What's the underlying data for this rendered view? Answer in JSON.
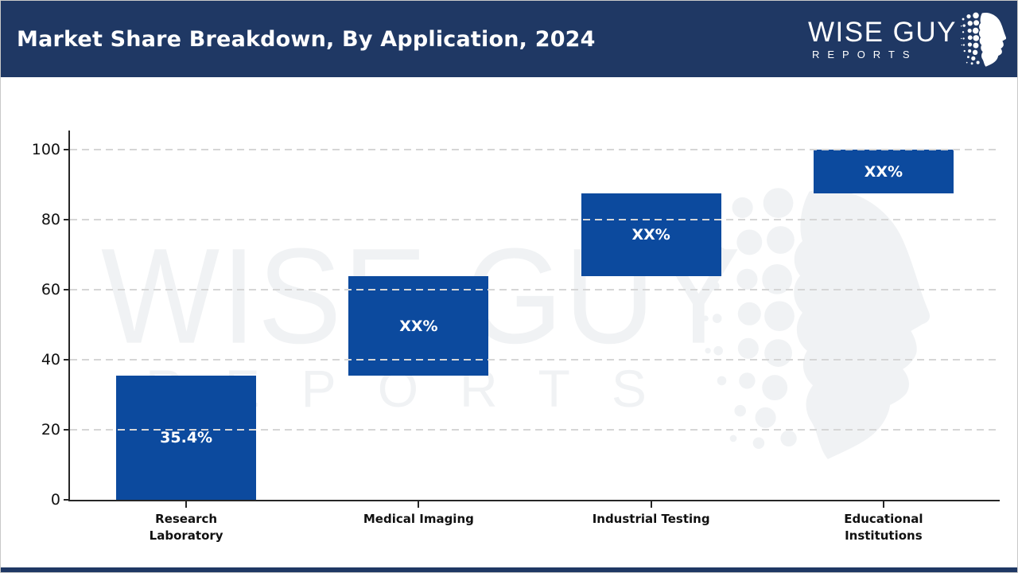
{
  "header": {
    "title": "Market Share Breakdown, By Application, 2024",
    "logo_line1": "WISE GUY",
    "logo_line2": "REPORTS",
    "bg_color": "#1f3864"
  },
  "watermark": {
    "line1": "WISE GUY",
    "line2": "REPORTS"
  },
  "chart_data": {
    "type": "bar",
    "subtype": "waterfall",
    "title": "Market Share Breakdown, By Application, 2024",
    "xlabel": "",
    "ylabel": "",
    "categories": [
      "Research Laboratory",
      "Medical Imaging",
      "Industrial Testing",
      "Educational Institutions"
    ],
    "category_lines": [
      [
        "Research",
        "Laboratory"
      ],
      [
        "Medical Imaging"
      ],
      [
        "Industrial Testing"
      ],
      [
        "Educational",
        "Institutions"
      ]
    ],
    "segments": [
      {
        "category": "Research Laboratory",
        "label": "35.4%",
        "start": 0,
        "end": 35.4
      },
      {
        "category": "Medical Imaging",
        "label": "XX%",
        "start": 35.4,
        "end": 63.9
      },
      {
        "category": "Industrial Testing",
        "label": "XX%",
        "start": 63.9,
        "end": 87.5
      },
      {
        "category": "Educational Institutions",
        "label": "XX%",
        "start": 87.5,
        "end": 100
      }
    ],
    "yticks": [
      0,
      20,
      40,
      60,
      80,
      100
    ],
    "ylim": [
      0,
      107
    ],
    "grid": "horizontal dashed lines drawn over bars",
    "legend": "none",
    "bar_color": "#0c4a9e",
    "bar_label_color": "#ffffff",
    "axis_color": "#262626",
    "gridline_color": "#d6d6d6"
  }
}
